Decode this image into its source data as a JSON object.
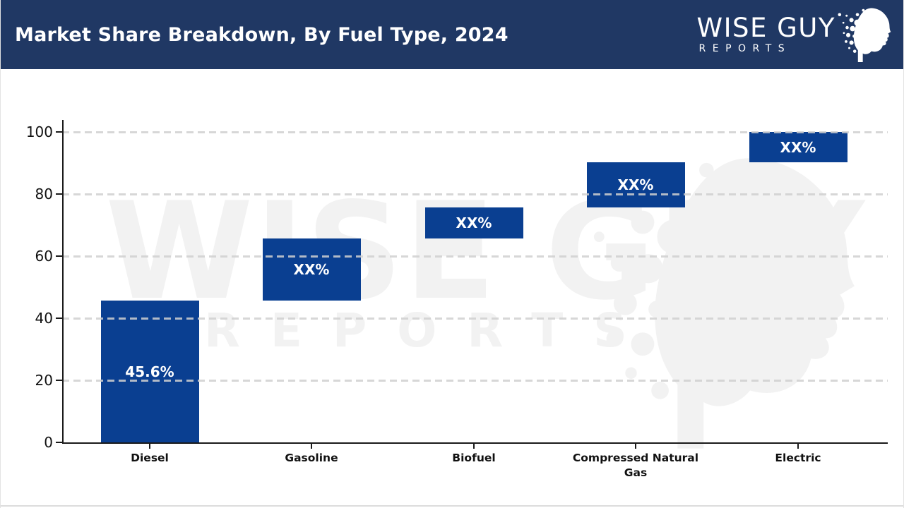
{
  "header": {
    "title": "Market Share Breakdown, By Fuel Type, 2024",
    "logo": {
      "line1": "WISE GUY",
      "line2": "REPORTS"
    }
  },
  "watermark": {
    "line1": "WISE GUY",
    "line2": "REPORTS"
  },
  "chart_data": {
    "type": "bar",
    "subtype": "waterfall",
    "title": "Market Share Breakdown, By Fuel Type, 2024",
    "categories": [
      "Diesel",
      "Gasoline",
      "Biofuel",
      "Compressed Natural\nGas",
      "Electric"
    ],
    "segments": [
      {
        "category": "Diesel",
        "start": 0,
        "end": 45.6
      },
      {
        "category": "Gasoline",
        "start": 45.6,
        "end": 65.6
      },
      {
        "category": "Biofuel",
        "start": 65.6,
        "end": 75.6
      },
      {
        "category": "Compressed Natural Gas",
        "start": 75.6,
        "end": 90.2
      },
      {
        "category": "Electric",
        "start": 90.2,
        "end": 100
      }
    ],
    "bar_labels": [
      "45.6%",
      "XX%",
      "XX%",
      "XX%",
      "XX%"
    ],
    "yticks": [
      0,
      20,
      40,
      60,
      80,
      100
    ],
    "ylim": [
      0,
      100
    ],
    "xlabel": "",
    "ylabel": "",
    "grid": true,
    "legend": false,
    "colors": {
      "bar": "#0a3f91",
      "header_background": "#203864",
      "gridline": "#d0d0d0",
      "axis": "#1a1a1a",
      "bar_label_text": "#ffffff",
      "watermark": "#f2f2f2"
    }
  }
}
